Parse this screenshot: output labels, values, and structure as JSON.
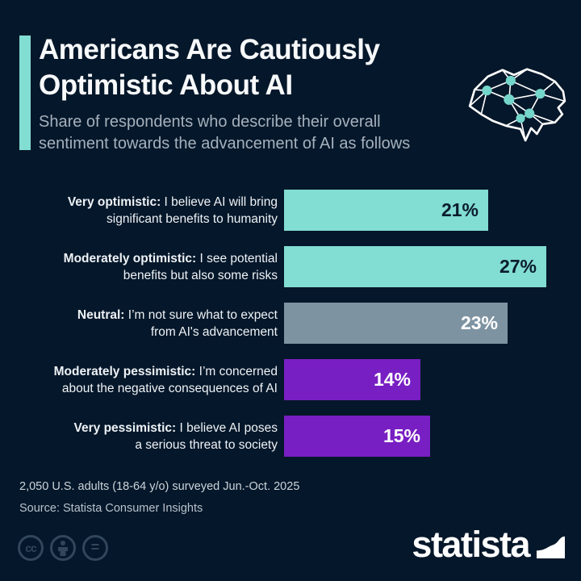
{
  "header": {
    "title_line1": "Americans Are Cautiously",
    "title_line2": "Optimistic About AI",
    "subtitle_line1": "Share of respondents who describe their overall",
    "subtitle_line2": "sentiment towards the advancement of AI as follows"
  },
  "icons": {
    "brain": "brain-network-icon",
    "cc": "cc-license-icon",
    "attribution": "attribution-person-icon",
    "equals": "no-derivatives-icon",
    "logo_mark": "statista-swoosh-mark"
  },
  "colors": {
    "background": "#05172a",
    "teal": "#82ddd2",
    "gray": "#7e93a2",
    "purple": "#781fc3",
    "dark_text": "#0a1c2e",
    "light_text": "#ffffff",
    "accent": "#82ddd2"
  },
  "chart": {
    "rows": [
      {
        "label_bold": "Very optimistic:",
        "rest1": " I believe AI will bring",
        "rest2": "significant benefits to humanity",
        "value": 21,
        "value_label": "21%",
        "color": "teal",
        "text": "dark"
      },
      {
        "label_bold": "Moderately optimistic:",
        "rest1": " I see potential",
        "rest2": "benefits but also some risks",
        "value": 27,
        "value_label": "27%",
        "color": "teal",
        "text": "dark"
      },
      {
        "label_bold": "Neutral:",
        "rest1": " I’m not sure what to expect",
        "rest2": "from AI's advancement",
        "value": 23,
        "value_label": "23%",
        "color": "gray",
        "text": "light"
      },
      {
        "label_bold": "Moderately pessimistic:",
        "rest1": " I’m concerned",
        "rest2": "about the negative consequences of AI",
        "value": 14,
        "value_label": "14%",
        "color": "purple",
        "text": "light"
      },
      {
        "label_bold": "Very pessimistic:",
        "rest1": " I believe AI poses",
        "rest2": "a serious threat to society",
        "value": 15,
        "value_label": "15%",
        "color": "purple",
        "text": "light"
      }
    ]
  },
  "chart_data": {
    "type": "bar",
    "orientation": "horizontal",
    "title": "Americans Are Cautiously Optimistic About AI",
    "subtitle": "Share of respondents who describe their overall sentiment towards the advancement of AI as follows",
    "categories": [
      "Very optimistic",
      "Moderately optimistic",
      "Neutral",
      "Moderately pessimistic",
      "Very pessimistic"
    ],
    "category_descriptions": [
      "I believe AI will bring significant benefits to humanity",
      "I see potential benefits but also some risks",
      "I'm not sure what to expect from AI's advancement",
      "I'm concerned about the negative consequences of AI",
      "I believe AI poses a serious threat to society"
    ],
    "values": [
      21,
      27,
      23,
      14,
      15
    ],
    "value_labels": [
      "21%",
      "27%",
      "23%",
      "14%",
      "15%"
    ],
    "unit": "%",
    "xlim": [
      0,
      30
    ],
    "grid": false,
    "legend": false,
    "bar_colors": [
      "#82ddd2",
      "#82ddd2",
      "#7e93a2",
      "#781fc3",
      "#781fc3"
    ]
  },
  "footer": {
    "note": "2,050 U.S. adults (18-64 y/o) surveyed Jun.-Oct. 2025",
    "source": "Source: Statista Consumer Insights",
    "cc_label": "cc",
    "equals_label": "=",
    "logo_text": "statista"
  }
}
